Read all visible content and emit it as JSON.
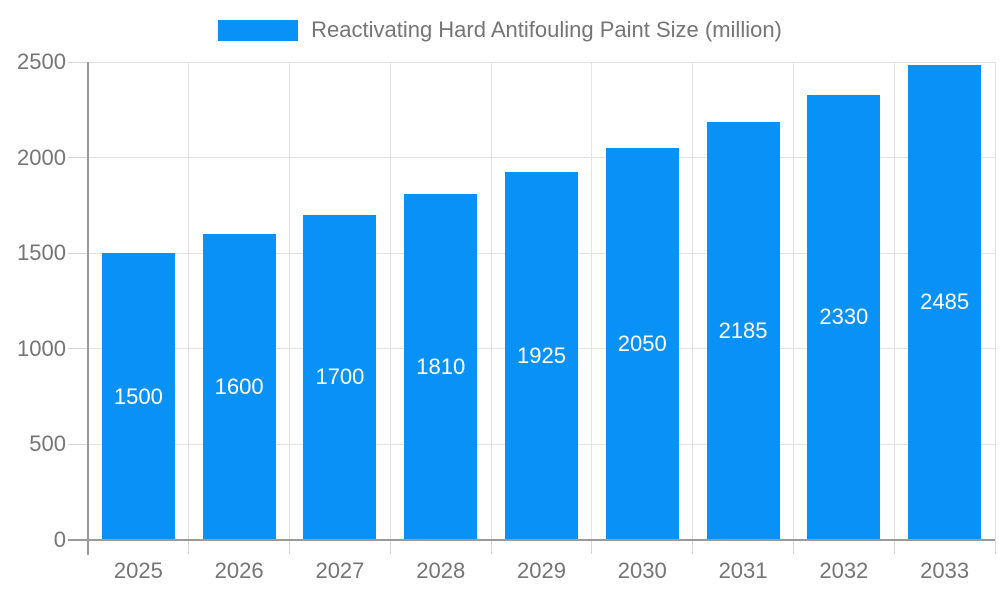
{
  "chart_data": {
    "type": "bar",
    "legend": {
      "label": "Reactivating Hard Antifouling Paint Size (million)",
      "position": "top"
    },
    "categories": [
      "2025",
      "2026",
      "2027",
      "2028",
      "2029",
      "2030",
      "2031",
      "2032",
      "2033"
    ],
    "values": [
      1500,
      1600,
      1700,
      1810,
      1925,
      2050,
      2185,
      2330,
      2485
    ],
    "value_labels_shown": true,
    "xlabel": "",
    "ylabel": "",
    "ylim": [
      0,
      2500
    ],
    "yticks": [
      0,
      500,
      1000,
      1500,
      2000,
      2500
    ],
    "grid": true,
    "colors": {
      "bar": "#0892f8",
      "bar_value_text": "#ffffff",
      "axis_text": "#757575",
      "legend_text": "#757575",
      "gridline": "#e3e3e3",
      "tick": "#d6d6d6",
      "axis_line": "#9a9a9a",
      "background": "#ffffff"
    }
  }
}
